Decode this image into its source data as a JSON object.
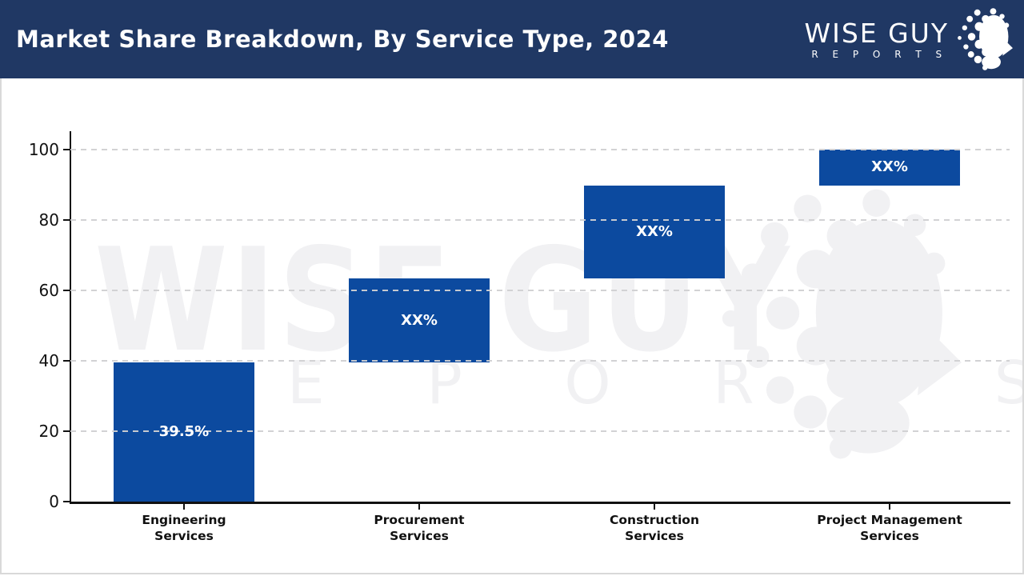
{
  "header": {
    "title": "Market Share Breakdown, By Service Type, 2024",
    "logo": {
      "name": "WISE GUY",
      "sub": "R E P O R T S"
    }
  },
  "watermark": {
    "big": "WISE GUY",
    "sub": "R E P O R T S"
  },
  "colors": {
    "header_bg": "#203864",
    "bar": "#0c4a9f",
    "bar_label": "#ffffff",
    "grid": "#d9d9d9",
    "watermark": "#f1f1f3",
    "axis": "#111111",
    "title_text": "#ffffff"
  },
  "chart_data": {
    "type": "bar",
    "subtype": "waterfall",
    "title": "Market Share Breakdown, By Service Type, 2024",
    "xlabel": "",
    "ylabel": "",
    "ylim": [
      0,
      105
    ],
    "yticks": [
      0,
      20,
      40,
      60,
      80,
      100
    ],
    "grid": "horizontal-dashed",
    "legend": "none",
    "categories": [
      "Engineering Services",
      "Procurement Services",
      "Construction Services",
      "Project Management Services"
    ],
    "category_lines": [
      [
        "Engineering",
        "Services"
      ],
      [
        "Procurement",
        "Services"
      ],
      [
        "Construction",
        "Services"
      ],
      [
        "Project Management",
        "Services"
      ]
    ],
    "values": [
      39.5,
      23.9,
      26.4,
      10.2
    ],
    "cumulative": [
      39.5,
      63.4,
      89.8,
      100
    ],
    "segments": [
      {
        "category": "Engineering Services",
        "start": 0,
        "end": 39.5,
        "label": "39.5%"
      },
      {
        "category": "Procurement Services",
        "start": 39.5,
        "end": 63.4,
        "label": "XX%"
      },
      {
        "category": "Construction Services",
        "start": 63.4,
        "end": 89.8,
        "label": "XX%"
      },
      {
        "category": "Project Management Services",
        "start": 89.8,
        "end": 100,
        "label": "XX%"
      }
    ]
  }
}
